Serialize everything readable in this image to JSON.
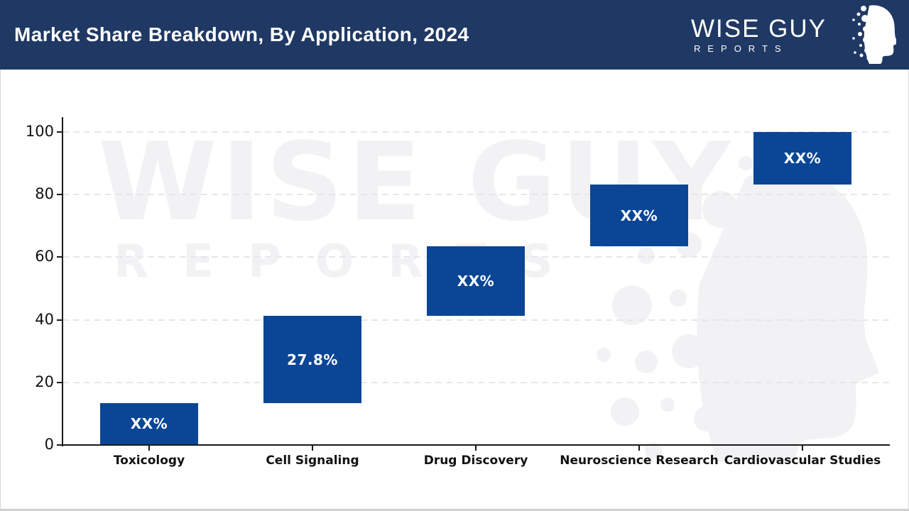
{
  "header": {
    "title": "Market Share Breakdown, By Application, 2024",
    "bg_color": "#1f3864",
    "logo": {
      "line1": "WISE GUY",
      "line2": "REPORTS"
    }
  },
  "watermark": {
    "line1": "WISE GUY",
    "line2": "REPORTS"
  },
  "chart_data": {
    "type": "bar",
    "subtype": "waterfall",
    "title": "Market Share Breakdown, By Application, 2024",
    "xlabel": "",
    "ylabel": "",
    "categories": [
      "Toxicology",
      "Cell Signaling",
      "Drug Discovery",
      "Neuroscience Research",
      "Cardiovascular Studies"
    ],
    "segments": [
      {
        "category": "Toxicology",
        "start": 0,
        "end": 13.4,
        "label": "XX%"
      },
      {
        "category": "Cell Signaling",
        "start": 13.4,
        "end": 41.2,
        "label": "27.8%"
      },
      {
        "category": "Drug Discovery",
        "start": 41.2,
        "end": 63.4,
        "label": "XX%"
      },
      {
        "category": "Neuroscience Research",
        "start": 63.4,
        "end": 83.2,
        "label": "XX%"
      },
      {
        "category": "Cardiovascular Studies",
        "start": 83.2,
        "end": 100,
        "label": "XX%"
      }
    ],
    "y_ticks": [
      0,
      20,
      40,
      60,
      80,
      100
    ],
    "ylim": [
      0,
      105
    ],
    "grid": "horizontal-dashed",
    "legend": "none",
    "bar_color": "#0b4696",
    "value_label_color": "#ffffff",
    "axis_color": "#1a1a1a"
  }
}
